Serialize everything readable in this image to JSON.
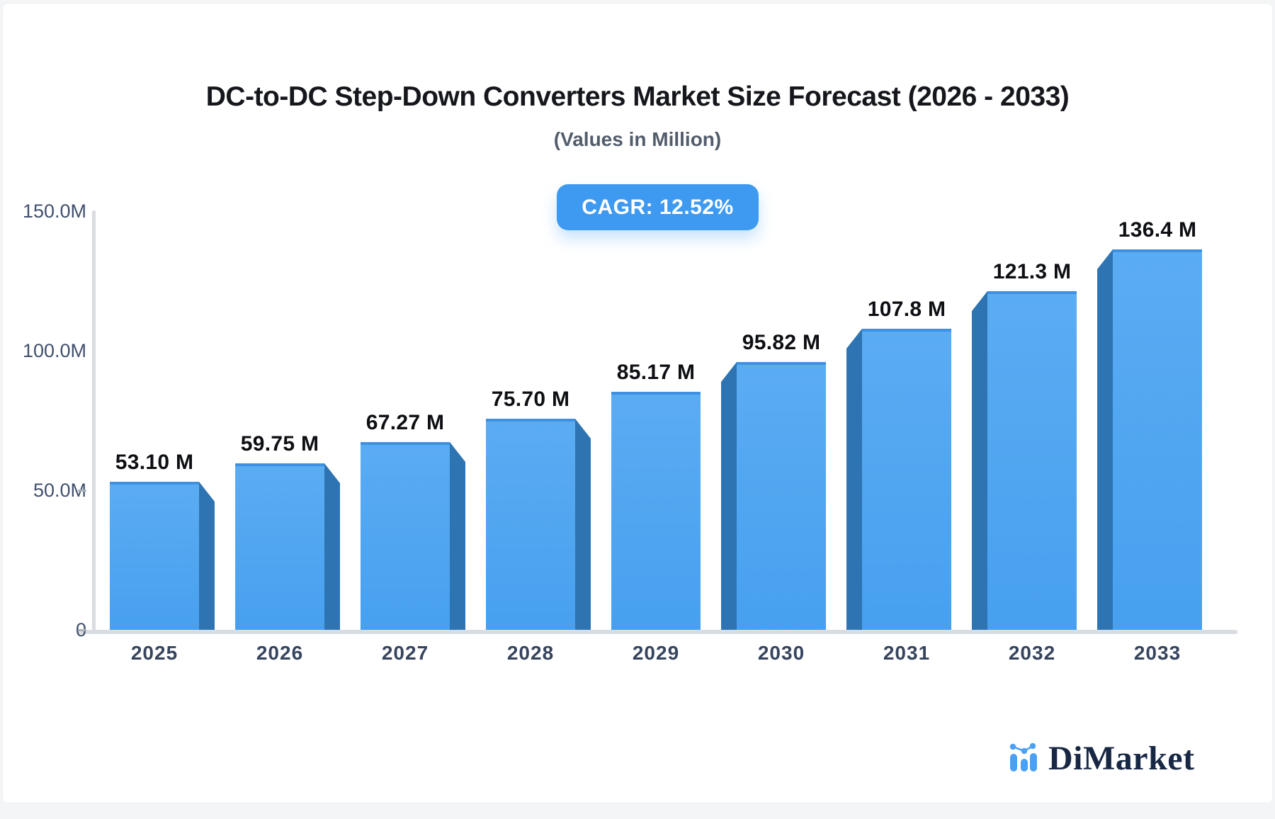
{
  "title": "DC-to-DC Step-Down Converters Market Size Forecast (2026 - 2033)",
  "subtitle": "(Values in Million)",
  "cagr_label": "CAGR: 12.52%",
  "brand": {
    "name": "DiMarket",
    "icon": "mini-bar-line-chart-icon"
  },
  "colors": {
    "accent_blue": "#3d9af0",
    "bar_face_top": "#5bacf2",
    "bar_face_bottom": "#47a0ef",
    "bar_side": "#2e74b3",
    "bar_top_edge": "#3e90e0",
    "axis_line": "#d9dce1",
    "title_text": "#15171c",
    "subtitle_text": "#525c6b",
    "axis_label_text": "#41506e",
    "year_label_text": "#36445e",
    "value_label_text": "#0d0f13",
    "logo_text": "#182744",
    "logo_icon_blue": "#4aa0f5"
  },
  "chart_data": {
    "type": "bar",
    "title": "DC-to-DC Step-Down Converters Market Size Forecast (2026 - 2033)",
    "subtitle": "(Values in Million)",
    "unit": "Million",
    "categories": [
      "2025",
      "2026",
      "2027",
      "2028",
      "2029",
      "2030",
      "2031",
      "2032",
      "2033"
    ],
    "values": [
      53.1,
      59.75,
      67.27,
      75.7,
      85.17,
      95.82,
      107.8,
      121.3,
      136.4
    ],
    "value_labels": [
      "53.10 M",
      "59.75 M",
      "67.27 M",
      "75.70 M",
      "85.17 M",
      "95.82 M",
      "107.8 M",
      "121.3 M",
      "136.4 M"
    ],
    "cagr": "12.52%",
    "xlabel": "",
    "ylabel": "",
    "ylim": [
      0,
      150
    ],
    "yticks": [
      {
        "value": 150,
        "label": "150.0M"
      },
      {
        "value": 100,
        "label": "100.0M"
      },
      {
        "value": 50,
        "label": "50.0M"
      },
      {
        "value": 0,
        "label": "0"
      }
    ],
    "grid": "off",
    "legend": "none",
    "bar_style": "3d-bevel, side faces point away from chart center"
  }
}
